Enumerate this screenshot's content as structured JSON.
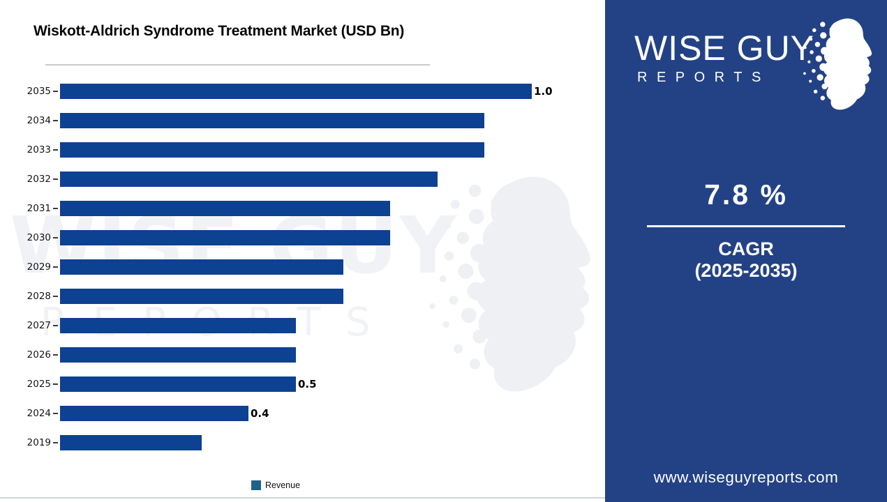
{
  "chart_data": {
    "type": "bar",
    "orientation": "horizontal",
    "title": "Wiskott-Aldrich Syndrome Treatment Market (USD Bn)",
    "unit": "USD Bn",
    "categories": [
      "2035",
      "2034",
      "2033",
      "2032",
      "2031",
      "2030",
      "2029",
      "2028",
      "2027",
      "2026",
      "2025",
      "2024",
      "2019"
    ],
    "values": [
      1.0,
      0.9,
      0.9,
      0.8,
      0.7,
      0.7,
      0.6,
      0.6,
      0.5,
      0.5,
      0.5,
      0.4,
      0.3
    ],
    "bar_labels": [
      "1.0",
      "",
      "",
      "",
      "",
      "",
      "",
      "",
      "",
      "",
      "0.5",
      "0.4",
      ""
    ],
    "xlim": [
      0,
      1.0
    ],
    "grid": false,
    "bar_color": "#0d4191",
    "legend_position": "bottom",
    "legend": [
      {
        "label": "Revenue",
        "color": "#1f6287"
      }
    ]
  },
  "watermark": {
    "line1": "WISE GUY",
    "line2": "REPORTS"
  },
  "sidebar": {
    "background_color": "#234285",
    "logo_line1": "WISE GUY",
    "logo_line2": "REPORTS",
    "cagr_value": "7.8 %",
    "cagr_label": "CAGR",
    "cagr_range": "(2025-2035)",
    "website": "www.wiseguyreports.com"
  }
}
